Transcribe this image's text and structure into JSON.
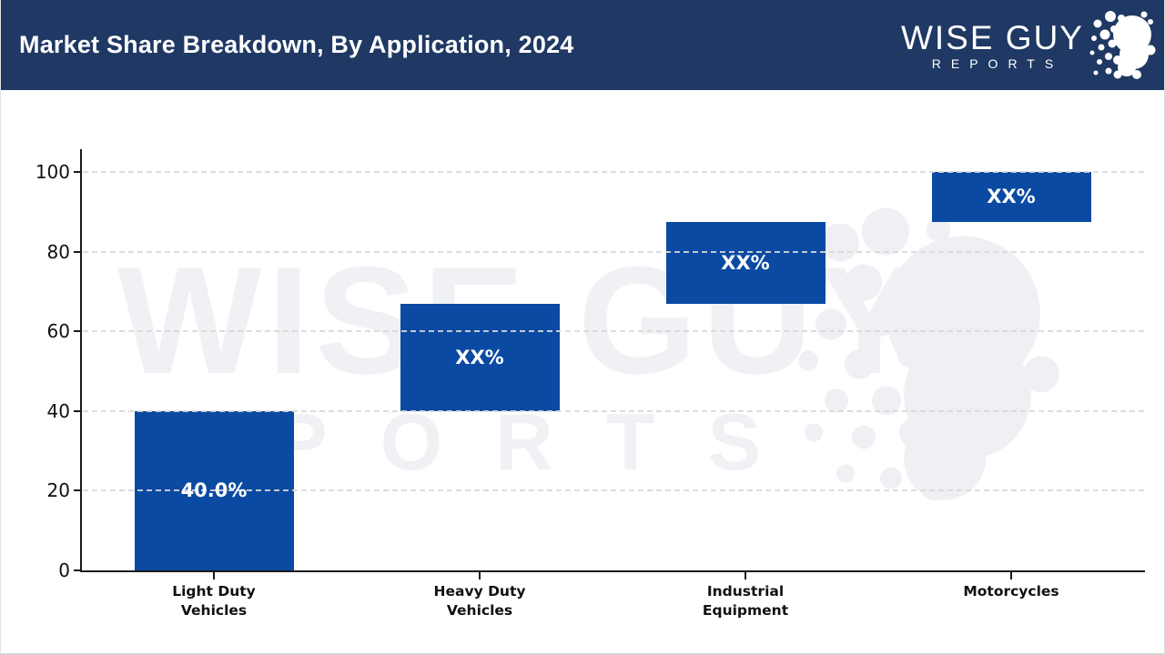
{
  "header": {
    "title": "Market Share Breakdown, By Application, 2024",
    "bg_color": "#1F3864",
    "logo": {
      "brand_top": "WISE GUY",
      "brand_bottom": "REPORTS"
    }
  },
  "watermark": {
    "text_top": "WISE GUY",
    "text_bottom": "PORTS"
  },
  "chart_data": {
    "type": "bar",
    "subtype": "waterfall",
    "title": "Market Share Breakdown, By Application, 2024",
    "categories": [
      "Light Duty Vehicles",
      "Heavy Duty Vehicles",
      "Industrial Equipment",
      "Motorcycles"
    ],
    "category_label_lines": [
      [
        "Light Duty",
        "Vehicles"
      ],
      [
        "Heavy Duty",
        "Vehicles"
      ],
      [
        "Industrial",
        "Equipment"
      ],
      [
        "Motorcycles"
      ]
    ],
    "segments": [
      {
        "category": "Light Duty Vehicles",
        "start": 0,
        "end": 40,
        "label": "40.0%"
      },
      {
        "category": "Heavy Duty Vehicles",
        "start": 40,
        "end": 67,
        "label": "XX%"
      },
      {
        "category": "Industrial Equipment",
        "start": 67,
        "end": 87.5,
        "label": "XX%"
      },
      {
        "category": "Motorcycles",
        "start": 87.5,
        "end": 100,
        "label": "XX%"
      }
    ],
    "ylim": [
      0,
      100
    ],
    "yticks": [
      0,
      20,
      40,
      60,
      80,
      100
    ],
    "ytick_labels": [
      "0",
      "20",
      "40",
      "60",
      "80",
      "100"
    ],
    "xlabel": "",
    "ylabel": "",
    "legend": null,
    "grid": {
      "horizontal": true,
      "style": "dashed",
      "color": "#D9D9D9"
    },
    "bar_color": "#0B4AA2",
    "bar_label_color": "#FFFFFF"
  }
}
